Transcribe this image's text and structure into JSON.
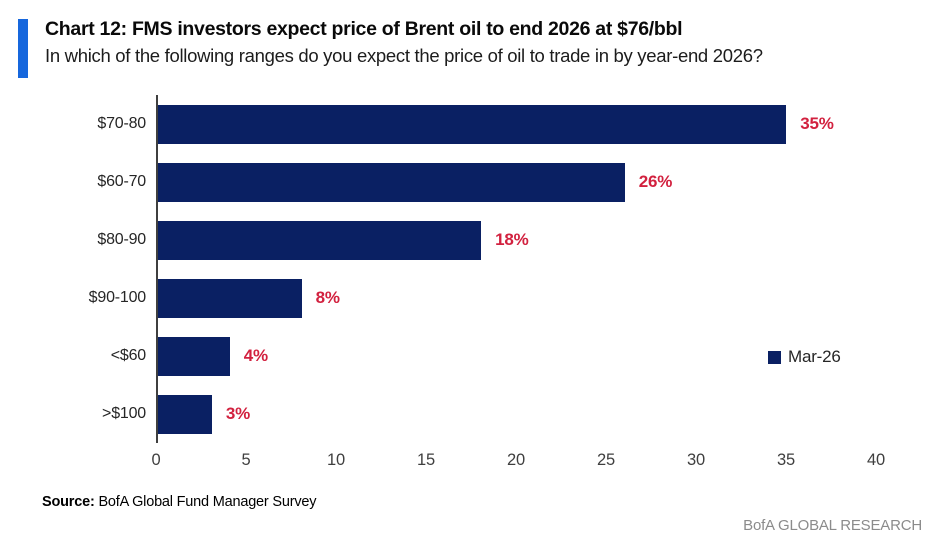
{
  "header": {
    "title": "Chart 12: FMS investors expect price of Brent oil to end 2026 at $76/bbl",
    "subtitle": "In which of the following ranges do you expect the price of oil to trade in by year-end 2026?"
  },
  "chart_data": {
    "type": "bar",
    "orientation": "horizontal",
    "title": "Chart 12: FMS investors expect price of Brent oil to end 2026 at $76/bbl",
    "subtitle": "In which of the following ranges do you expect the price of oil to trade in by year-end 2026?",
    "categories": [
      "$70-80",
      "$60-70",
      "$80-90",
      "$90-100",
      "<$60",
      ">$100"
    ],
    "series": [
      {
        "name": "Mar-26",
        "values": [
          35,
          26,
          18,
          8,
          4,
          3
        ]
      }
    ],
    "value_labels": [
      "35%",
      "26%",
      "18%",
      "8%",
      "4%",
      "3%"
    ],
    "xlabel": "",
    "ylabel": "",
    "xlim": [
      0,
      40
    ],
    "x_ticks": [
      0,
      5,
      10,
      15,
      20,
      25,
      30,
      35,
      40
    ],
    "grid": false,
    "legend": {
      "label": "Mar-26",
      "position": "middle-right"
    },
    "bar_color": "#0A2063",
    "value_label_color": "#D2213F"
  },
  "footer": {
    "source_label": "Source:",
    "source_text": "BofA Global Fund Manager Survey",
    "brand": "BofA GLOBAL RESEARCH"
  },
  "colors": {
    "accent_blue": "#1667DD",
    "bar_navy": "#0A2063",
    "value_red": "#D2213F",
    "axis_gray": "#3F3F3F",
    "brand_gray": "#8B8B8B"
  }
}
